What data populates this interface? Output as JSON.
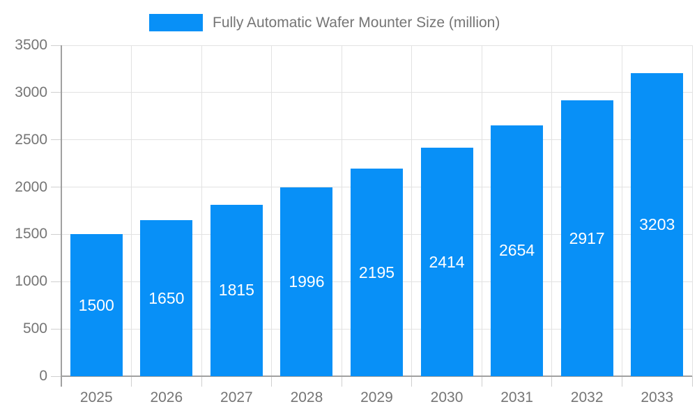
{
  "legend": {
    "label": "Fully Automatic Wafer Mounter Size (million)"
  },
  "chart_data": {
    "type": "bar",
    "title": "Fully Automatic Wafer Mounter Size (million)",
    "series_name": "Fully Automatic Wafer Mounter Size (million)",
    "categories": [
      "2025",
      "2026",
      "2027",
      "2028",
      "2029",
      "2030",
      "2031",
      "2032",
      "2033"
    ],
    "values": [
      1500,
      1650,
      1815,
      1996,
      2195,
      2414,
      2654,
      2917,
      3203
    ],
    "xlabel": "",
    "ylabel": "",
    "ylim": [
      0,
      3500
    ],
    "ytick_step": 500,
    "yticks": [
      0,
      500,
      1000,
      1500,
      2000,
      2500,
      3000,
      3500
    ],
    "grid": true,
    "legend_position": "top-center",
    "bar_color": "#0890f7",
    "bar_label_color": "#ffffff",
    "axis_text_color": "#757575",
    "gridline_color": "#e2e2e2",
    "axis_line_color": "#a0a0a0",
    "tick_color": "#cfcfcf",
    "background_color": "#ffffff"
  }
}
